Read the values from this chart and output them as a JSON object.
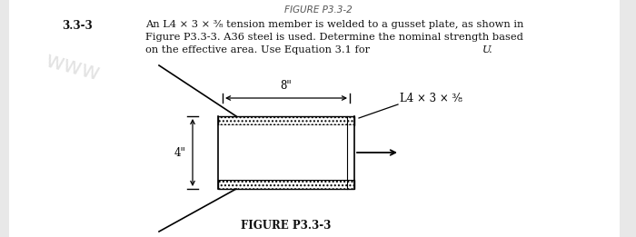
{
  "bg_color": "#e8e8e8",
  "page_color": "#ffffff",
  "title_top": "FIGURE P3.3-2",
  "problem_number": "3.3-3",
  "problem_text_line1": "An L4 × 3 × ³⁄₈ tension member is welded to a gusset plate, as shown in",
  "problem_text_line2": "Figure P3.3-3. A36 steel is used. Determine the nominal strength based",
  "problem_text_line3": "on the effective area. Use Equation 3.1 for �.",
  "problem_text_line3_plain": "on the effective area. Use Equation 3.1 for U.",
  "figure_caption": "FIGURE P3.3-3",
  "dim_8in_label": "8\"",
  "dim_4in_label": "4\"",
  "angle_label": "L4 × 3 × ³⁄₈",
  "line_color": "#000000",
  "text_color": "#111111",
  "watermark_color": "#cccccc",
  "note_italic_U": "U"
}
